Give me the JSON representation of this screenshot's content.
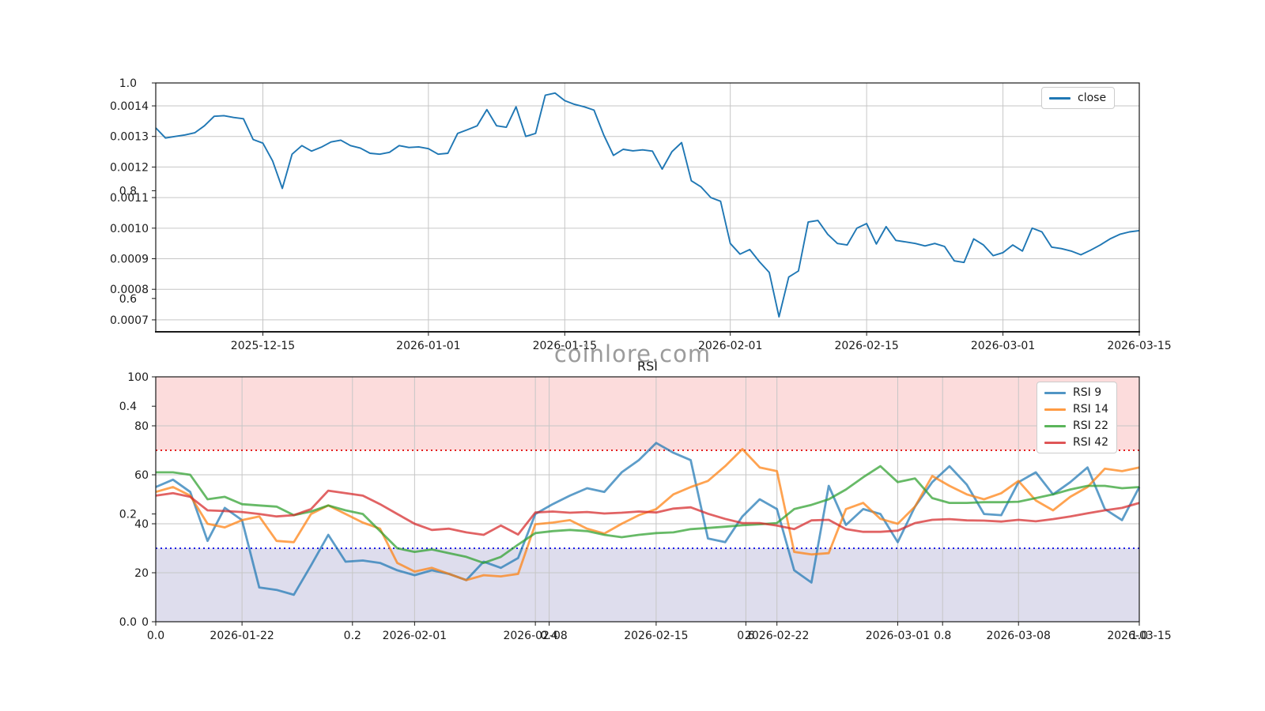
{
  "figure": {
    "watermark": "coinlore.com",
    "rsi_title": "RSI"
  },
  "colors": {
    "close": "#1f77b4",
    "rsi9": "#1f77b4",
    "rsi14": "#ff7f0e",
    "rsi22": "#2ca02c",
    "rsi42": "#d62728",
    "overbought_line": "#e00000",
    "oversold_line": "#0000e0",
    "overbought_fill": "#fcdcdc",
    "oversold_fill": "#dedded",
    "grid": "#c6c6c6",
    "spine": "#1a1a1a",
    "watermark": "#9b9b9b"
  },
  "overlay_axis": {
    "left_labels": [
      "1.0",
      "0.8",
      "0.6",
      "0.4",
      "0.2",
      "0.0"
    ],
    "bottom_labels": [
      "0.0",
      "0.2",
      "0.4",
      "0.6",
      "0.8",
      "1.0"
    ]
  },
  "chart_data": [
    {
      "type": "line",
      "name": "price",
      "x_start_date": "2025-12-04",
      "x_end_date": "2026-03-15",
      "x_total_days": 101,
      "x_tick_labels": [
        "2025-12-15",
        "2026-01-01",
        "2026-01-15",
        "2026-02-01",
        "2026-02-15",
        "2026-03-01",
        "2026-03-15"
      ],
      "x_tick_days": [
        11,
        28,
        42,
        59,
        73,
        87,
        101
      ],
      "y_tick_labels": [
        "0.0007",
        "0.0008",
        "0.0009",
        "0.0010",
        "0.0011",
        "0.0012",
        "0.0013",
        "0.0014"
      ],
      "y_tick_values": [
        0.0007,
        0.0008,
        0.0009,
        0.001,
        0.0011,
        0.0012,
        0.0013,
        0.0014
      ],
      "ylim": [
        0.000661,
        0.001475
      ],
      "grid": true,
      "legend_position": "upper right",
      "series": [
        {
          "name": "close",
          "color": "#1f77b4",
          "values": [
            0.001328,
            0.001295,
            0.0013,
            0.001305,
            0.001312,
            0.001335,
            0.001366,
            0.001368,
            0.001362,
            0.001358,
            0.00129,
            0.001278,
            0.00122,
            0.00113,
            0.001242,
            0.00127,
            0.001252,
            0.001265,
            0.001282,
            0.001288,
            0.00127,
            0.001262,
            0.001245,
            0.001242,
            0.001248,
            0.00127,
            0.001264,
            0.001266,
            0.00126,
            0.001242,
            0.001245,
            0.00131,
            0.001322,
            0.001335,
            0.001388,
            0.001335,
            0.00133,
            0.001397,
            0.0013,
            0.00131,
            0.001435,
            0.001442,
            0.001417,
            0.001405,
            0.001397,
            0.001386,
            0.001305,
            0.001238,
            0.001258,
            0.001253,
            0.001256,
            0.001252,
            0.001193,
            0.00125,
            0.00128,
            0.001155,
            0.001135,
            0.0011,
            0.001088,
            0.00095,
            0.000915,
            0.00093,
            0.00089,
            0.000855,
            0.00071,
            0.00084,
            0.00086,
            0.00102,
            0.001025,
            0.00098,
            0.00095,
            0.000945,
            0.001,
            0.001015,
            0.000948,
            0.001005,
            0.00096,
            0.000955,
            0.00095,
            0.000942,
            0.00095,
            0.00094,
            0.000893,
            0.000888,
            0.000965,
            0.000945,
            0.00091,
            0.00092,
            0.000945,
            0.000925,
            0.001,
            0.000988,
            0.000938,
            0.000933,
            0.000925,
            0.000913,
            0.000928,
            0.000945,
            0.000965,
            0.00098,
            0.000988,
            0.000992
          ]
        }
      ]
    },
    {
      "type": "line",
      "name": "rsi",
      "title": "RSI",
      "x_start_date": "2026-01-17",
      "x_end_date": "2026-03-15",
      "x_total_days": 57,
      "x_tick_labels": [
        "2026-01-22",
        "2026-02-01",
        "2026-02-08",
        "2026-02-15",
        "2026-02-22",
        "2026-03-01",
        "2026-03-08",
        "2026-03-15"
      ],
      "x_tick_days": [
        5,
        15,
        22,
        29,
        36,
        43,
        50,
        57
      ],
      "y_tick_labels": [
        "0",
        "20",
        "40",
        "60",
        "80",
        "100"
      ],
      "y_tick_values": [
        0,
        20,
        40,
        60,
        80,
        100
      ],
      "ylim": [
        0,
        100
      ],
      "grid": true,
      "overbought_level": 70,
      "oversold_level": 30,
      "bands": [
        {
          "from": 70,
          "to": 100,
          "color": "#fcdcdc"
        },
        {
          "from": 0,
          "to": 30,
          "color": "#dedded"
        }
      ],
      "legend_position": "upper right",
      "series": [
        {
          "name": "RSI 9",
          "color": "#1f77b4",
          "values": [
            55,
            58,
            53,
            33,
            46.5,
            41.5,
            14,
            13,
            11,
            23,
            35.5,
            24.5,
            25,
            24,
            21,
            19,
            21,
            19.5,
            17,
            24.5,
            22,
            26,
            44,
            48,
            51.5,
            54.5,
            53,
            61,
            66,
            73,
            69,
            66,
            34,
            32.5,
            43,
            50,
            46,
            21,
            16,
            55.5,
            39.5,
            46,
            44,
            32.5,
            47,
            57,
            63.5,
            56,
            44,
            43.5,
            57,
            61,
            52,
            57,
            63,
            46,
            41.5,
            55
          ]
        },
        {
          "name": "RSI 14",
          "color": "#ff7f0e",
          "values": [
            53,
            55,
            51.5,
            40,
            38.5,
            41.5,
            43,
            33,
            32.5,
            44,
            47.5,
            44,
            40.5,
            38,
            24,
            20.5,
            22,
            19.5,
            17,
            19,
            18.5,
            19.5,
            39.8,
            40.5,
            41.5,
            38,
            36,
            40,
            43.5,
            46,
            52,
            55,
            57.5,
            63.5,
            70.5,
            63,
            61.5,
            28.5,
            27.5,
            28,
            46,
            48.5,
            42,
            40,
            47,
            59.5,
            55.5,
            52,
            50,
            52.5,
            57.5,
            49.5,
            45.5,
            51,
            55,
            62.5,
            61.5,
            63
          ]
        },
        {
          "name": "RSI 22",
          "color": "#2ca02c",
          "values": [
            61,
            61,
            60,
            50,
            51,
            48,
            47.5,
            47,
            43.5,
            45,
            47.5,
            45.5,
            44,
            37,
            30,
            28.5,
            29.5,
            28,
            26.5,
            24,
            26.5,
            31.5,
            36.2,
            37,
            37.5,
            37,
            35.5,
            34.5,
            35.5,
            36.2,
            36.5,
            37.8,
            38.3,
            38.8,
            39.4,
            39.8,
            40.3,
            46,
            47.7,
            50,
            54,
            59,
            63.5,
            57,
            58.5,
            50.5,
            48.5,
            48.5,
            48.8,
            48.8,
            49,
            50.5,
            52,
            54,
            55.5,
            55.5,
            54.5,
            55
          ]
        },
        {
          "name": "RSI 42",
          "color": "#d62728",
          "values": [
            51.5,
            52.5,
            51,
            45.5,
            45.2,
            44.8,
            44,
            43,
            43.5,
            46,
            53.5,
            52.5,
            51.5,
            48,
            44,
            40,
            37.5,
            38,
            36.5,
            35.5,
            39.3,
            35.6,
            44.6,
            45,
            44.5,
            44.8,
            44.2,
            44.5,
            45,
            44.6,
            46.2,
            46.7,
            44.1,
            42,
            40.3,
            40.3,
            39.3,
            37.8,
            41.4,
            41.6,
            37.8,
            36.7,
            36.7,
            37.2,
            40.3,
            41.6,
            41.9,
            41.4,
            41.3,
            40.9,
            41.6,
            41,
            41.9,
            43,
            44.3,
            45.5,
            46.5,
            48.5
          ]
        }
      ]
    }
  ]
}
